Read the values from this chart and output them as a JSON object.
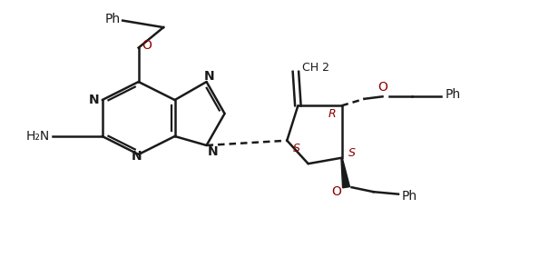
{
  "background_color": "#ffffff",
  "line_color": "#1a1a1a",
  "red_color": "#8B0000",
  "figsize": [
    6.05,
    2.95
  ],
  "dpi": 100,
  "xlim": [
    0,
    12
  ],
  "ylim": [
    0,
    5.5
  ]
}
